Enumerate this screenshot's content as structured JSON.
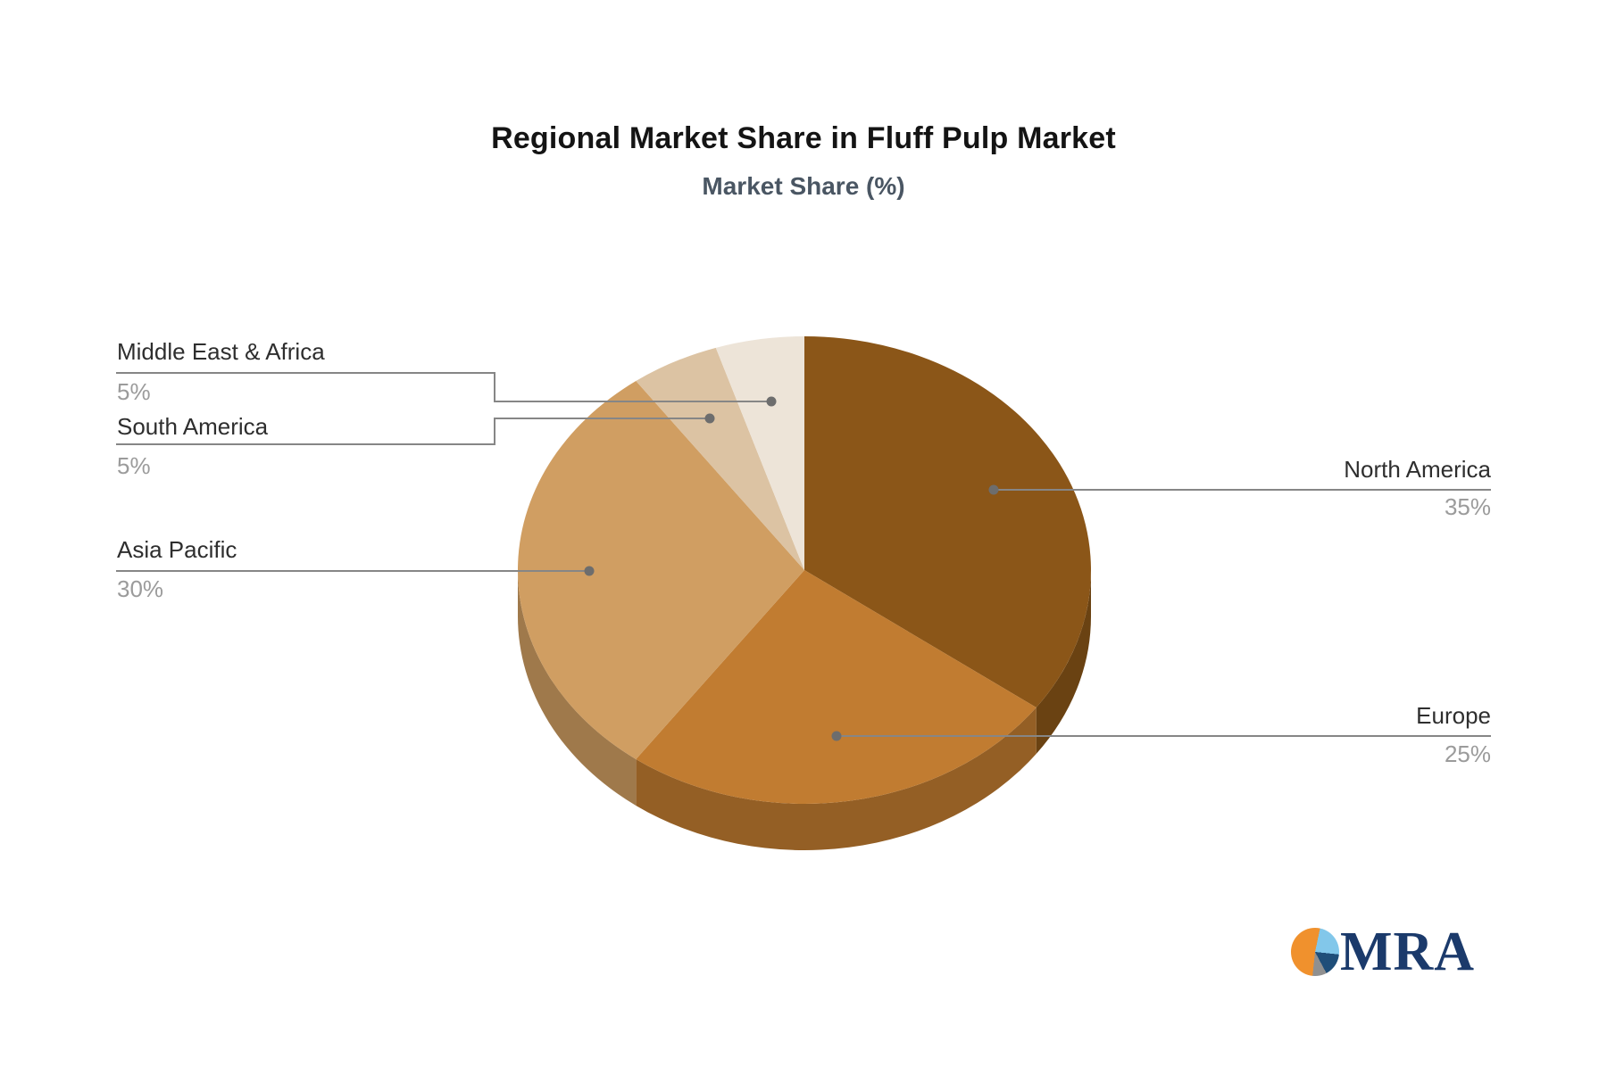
{
  "chart_data": {
    "type": "pie",
    "style": "3d",
    "title": "Regional Market Share in Fluff Pulp Market",
    "subtitle": "Market Share (%)",
    "unit": "%",
    "direction": "clockwise",
    "start_angle_deg": 0,
    "legend_position": "none",
    "label_style": "callout-leader-lines",
    "categories": [
      "North America",
      "Europe",
      "Asia Pacific",
      "South America",
      "Middle East & Africa"
    ],
    "values": [
      35,
      25,
      30,
      5,
      5
    ],
    "value_labels": [
      "35%",
      "25%",
      "30%",
      "5%",
      "5%"
    ],
    "colors": [
      "#8B5618",
      "#C17C31",
      "#D09E62",
      "#DCC3A3",
      "#EDE4D8"
    ],
    "leader_line_color": "#868686",
    "name_label_color": "#2e2e2e",
    "value_label_color": "#9b9b9b"
  },
  "branding": {
    "logo_text": "MRA",
    "logo_text_color": "#1B3A6B",
    "logo_pie_colors": [
      "#F0912D",
      "#82C7EA",
      "#1F4E79",
      "#909090"
    ]
  }
}
